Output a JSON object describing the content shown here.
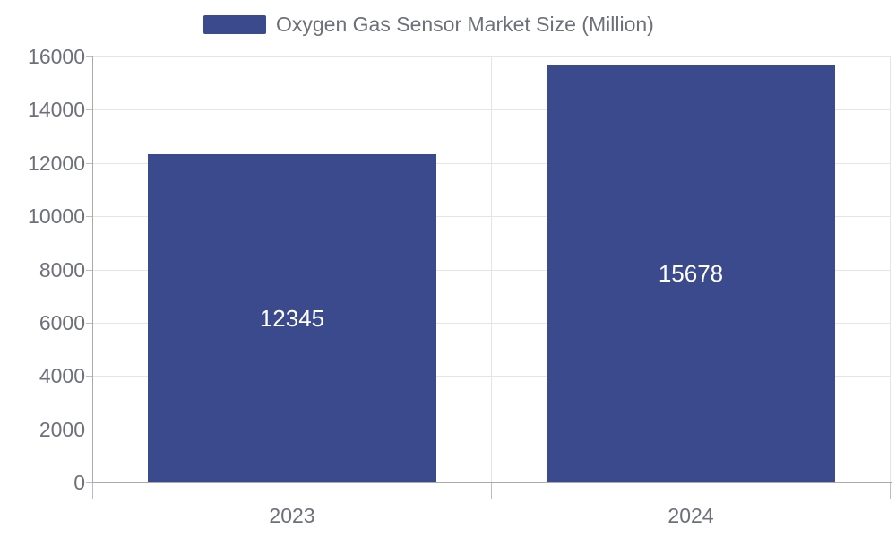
{
  "legend": {
    "label": "Oxygen Gas Sensor Market Size (Million)"
  },
  "chart_data": {
    "type": "bar",
    "title": "Oxygen Gas Sensor Market Size (Million)",
    "categories": [
      "2023",
      "2024"
    ],
    "series": [
      {
        "name": "Oxygen Gas Sensor Market Size (Million)",
        "values": [
          12345,
          15678
        ]
      }
    ],
    "value_labels": [
      "12345",
      "15678"
    ],
    "xlabel": "",
    "ylabel": "",
    "ylim": [
      0,
      16000
    ],
    "ytick_step": 2000,
    "ytick_labels": [
      "0",
      "2000",
      "4000",
      "6000",
      "8000",
      "10000",
      "12000",
      "14000",
      "16000"
    ],
    "grid": true,
    "legend_position": "top-center",
    "colors": {
      "bar": "#3A4A8C",
      "grid_line": "#E5E5E5",
      "axis_line": "#AAAAAA",
      "tick_mark": "#B7BECB",
      "axis_text": "#6E7079",
      "value_label_text": "#FFFFFF",
      "background": "#FFFFFF"
    }
  }
}
